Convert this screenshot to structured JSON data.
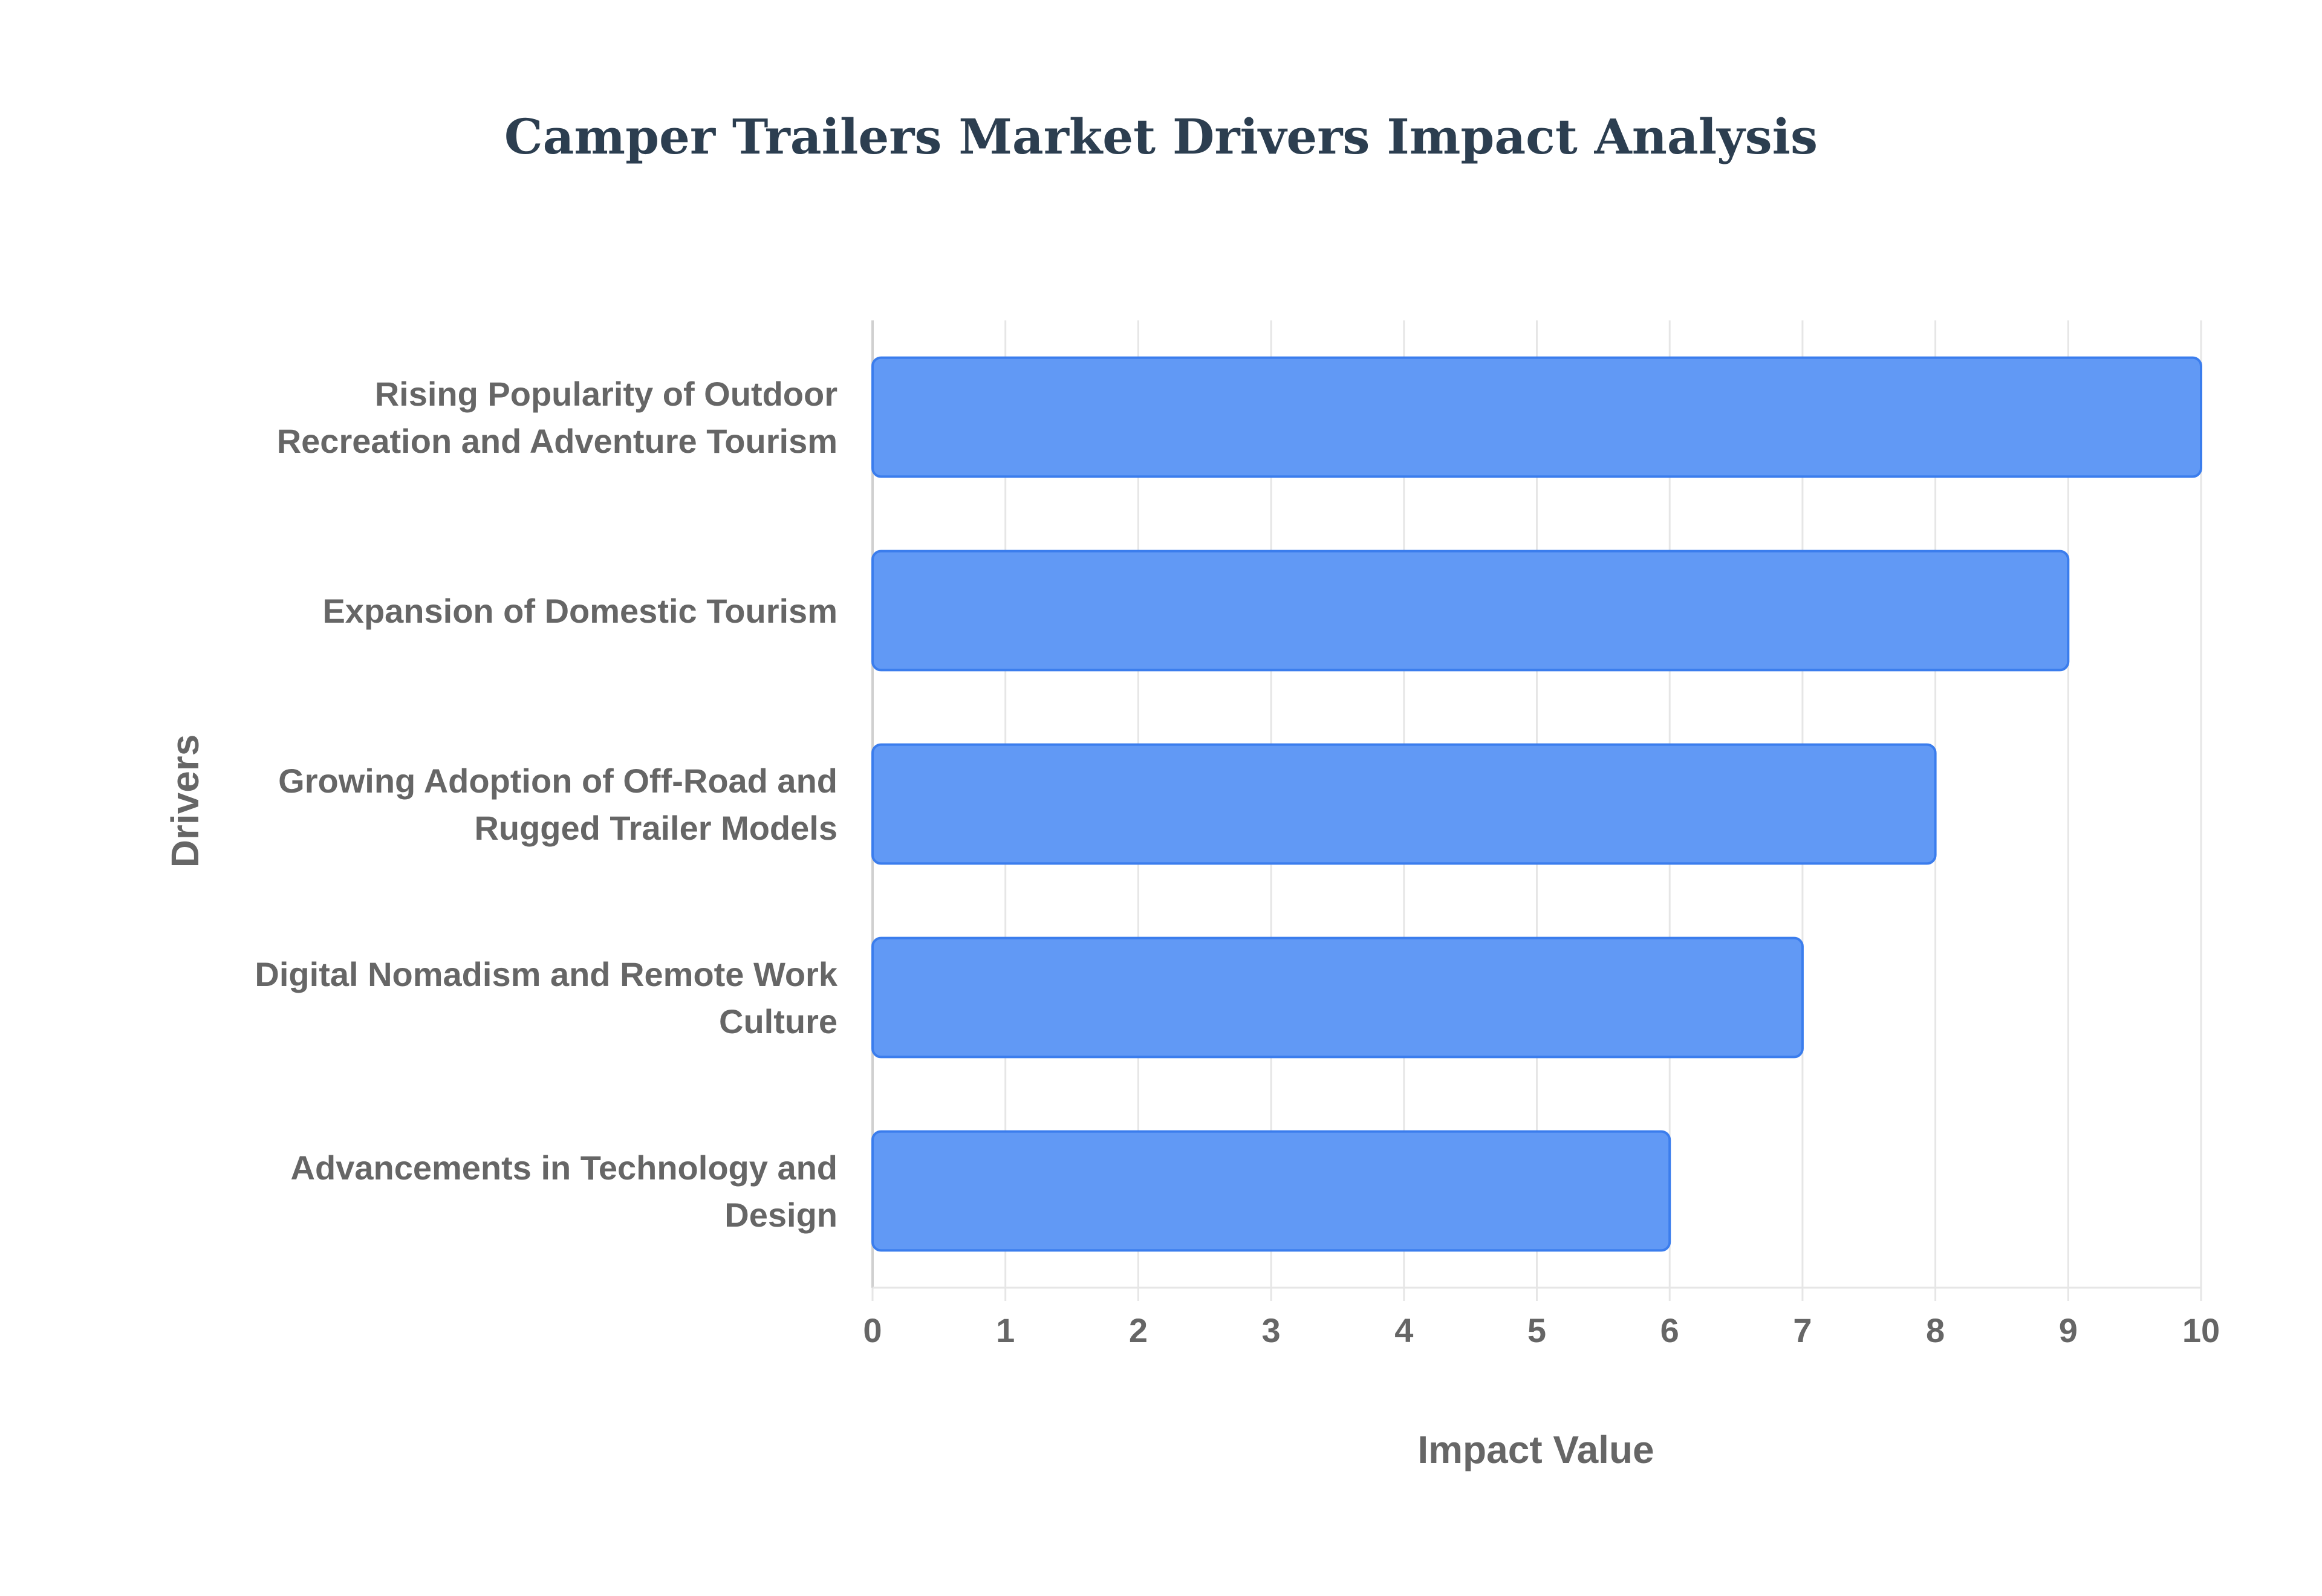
{
  "chart_data": {
    "type": "bar",
    "orientation": "horizontal",
    "title": "Camper Trailers Market Drivers Impact Analysis",
    "xlabel": "Impact Value",
    "ylabel": "Drivers",
    "xlim": [
      0,
      10
    ],
    "xticks": [
      "0",
      "1",
      "2",
      "3",
      "4",
      "5",
      "6",
      "7",
      "8",
      "9",
      "10"
    ],
    "grid": true,
    "legend": "none",
    "categories": [
      "Rising Popularity of Outdoor Recreation and Adventure Tourism",
      "Expansion of Domestic Tourism",
      "Growing Adoption of Off-Road and Rugged Trailer Models",
      "Digital Nomadism and Remote Work Culture",
      "Advancements in Technology and Design"
    ],
    "values": [
      10,
      9,
      8,
      7,
      6
    ],
    "colors": {
      "bar_fill": "#6199f5",
      "bar_stroke": "#3b7ded",
      "title": "#2c3e50",
      "text": "#666666",
      "grid": "#e6e6e6",
      "axis": "#d0d0d0"
    }
  }
}
